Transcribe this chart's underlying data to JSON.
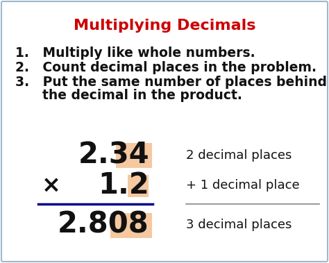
{
  "title": "Multiplying Decimals",
  "title_color": "#cc0000",
  "background_color": "#ffffff",
  "border_color": "#a0b8cc",
  "step1": "1.   Multiply like whole numbers.",
  "step2": "2.   Count decimal places in the problem.",
  "step3a": "3.   Put the same number of places behind",
  "step3b": "      the decimal in the product.",
  "highlight_color": "#f5c8a0",
  "desc1": "2 decimal places",
  "desc2": "+ 1 decimal place",
  "desc3": "3 decimal places",
  "line_color": "#00008b",
  "desc_line_color": "#888888",
  "text_color": "#111111",
  "font_size_title": 16,
  "font_size_steps": 13.5,
  "font_size_math": 30,
  "font_size_desc": 13
}
